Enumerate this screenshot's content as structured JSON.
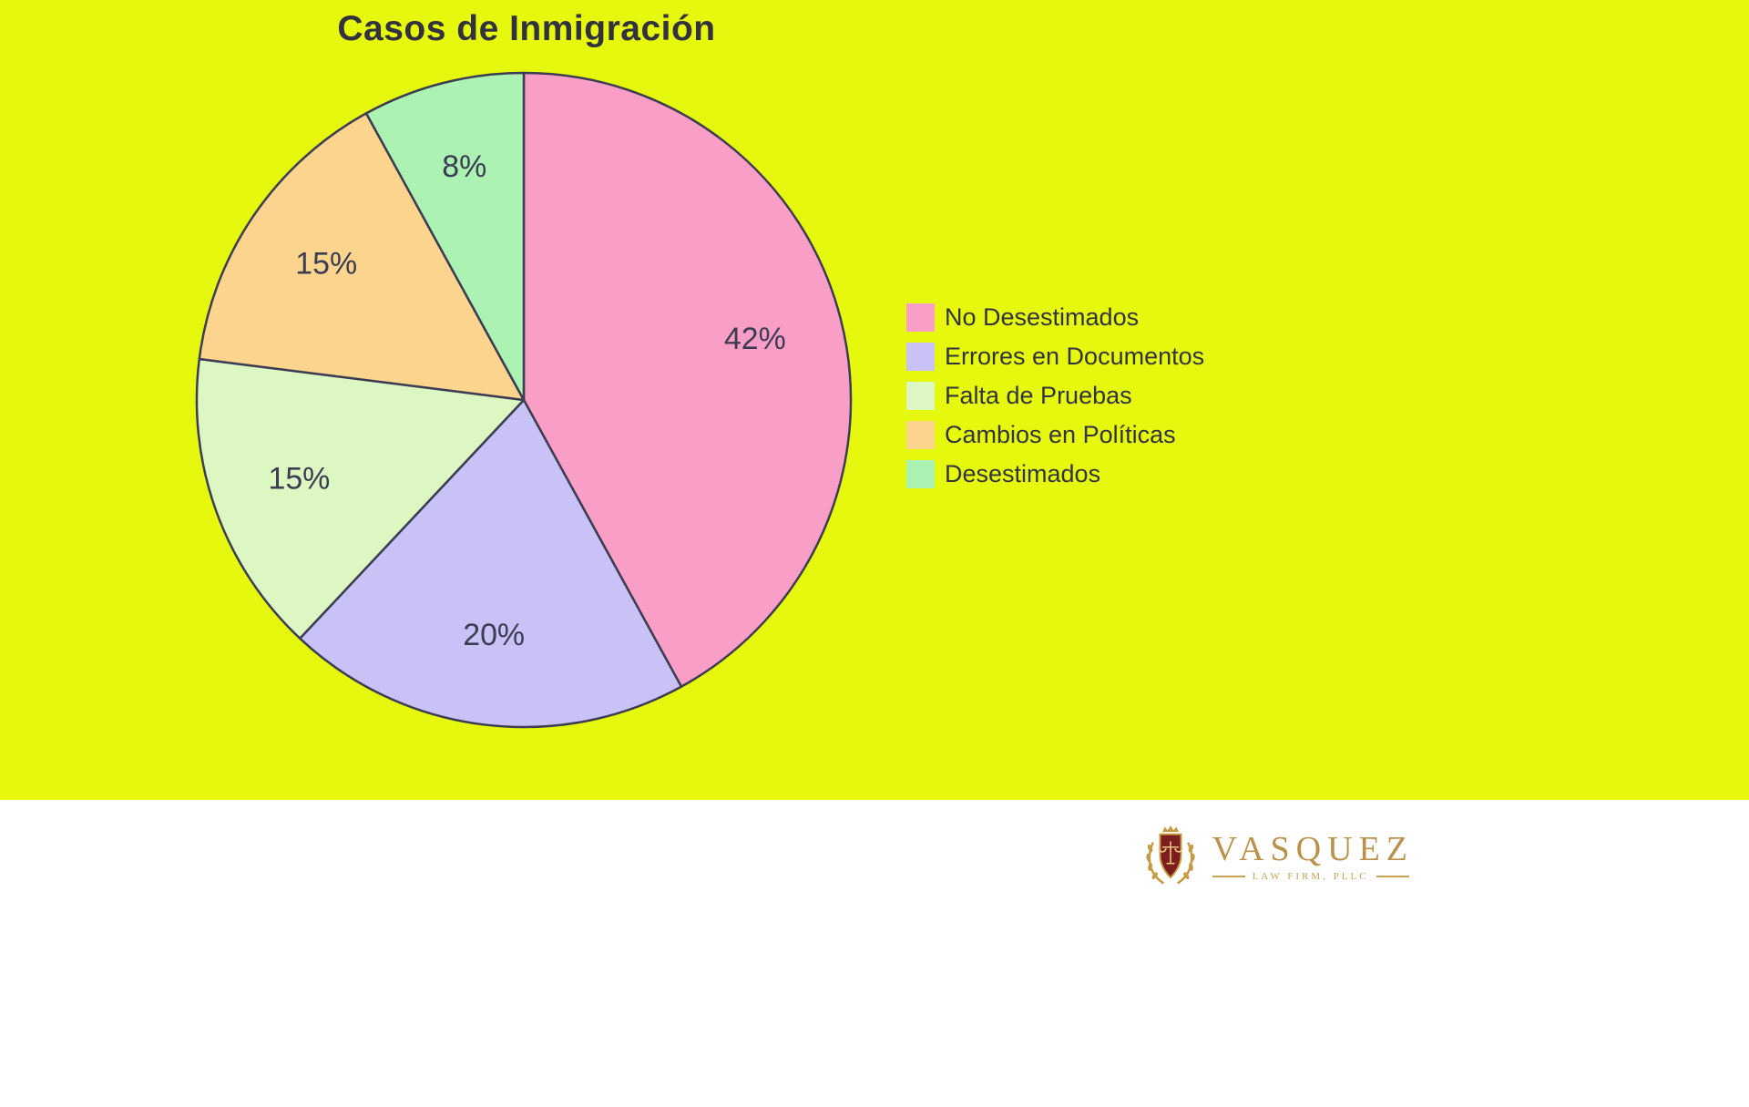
{
  "page": {
    "background_color": "#E6F80D",
    "footer_background_color": "#FFFFFF"
  },
  "chart_data": {
    "type": "pie",
    "title": "Casos de Inmigración",
    "categories": [
      "No Desestimados",
      "Errores en Documentos",
      "Falta de Pruebas",
      "Cambios en Políticas",
      "Desestimados"
    ],
    "values": [
      42,
      20,
      15,
      15,
      8
    ],
    "percent_labels": [
      "42%",
      "20%",
      "15%",
      "15%",
      "8%"
    ],
    "colors": [
      "#F99FC7",
      "#C9C2F6",
      "#DCF7C1",
      "#FBD48D",
      "#ACF2B3"
    ],
    "slice_stroke_color": "#3C3C52",
    "label_color": "#3C3C52",
    "title_color": "#32323E",
    "start_angle_deg": 0,
    "direction": "clockwise",
    "legend_position": "right",
    "grid": false
  },
  "branding": {
    "name": "VASQUEZ",
    "tagline": "LAW FIRM, PLLC"
  }
}
